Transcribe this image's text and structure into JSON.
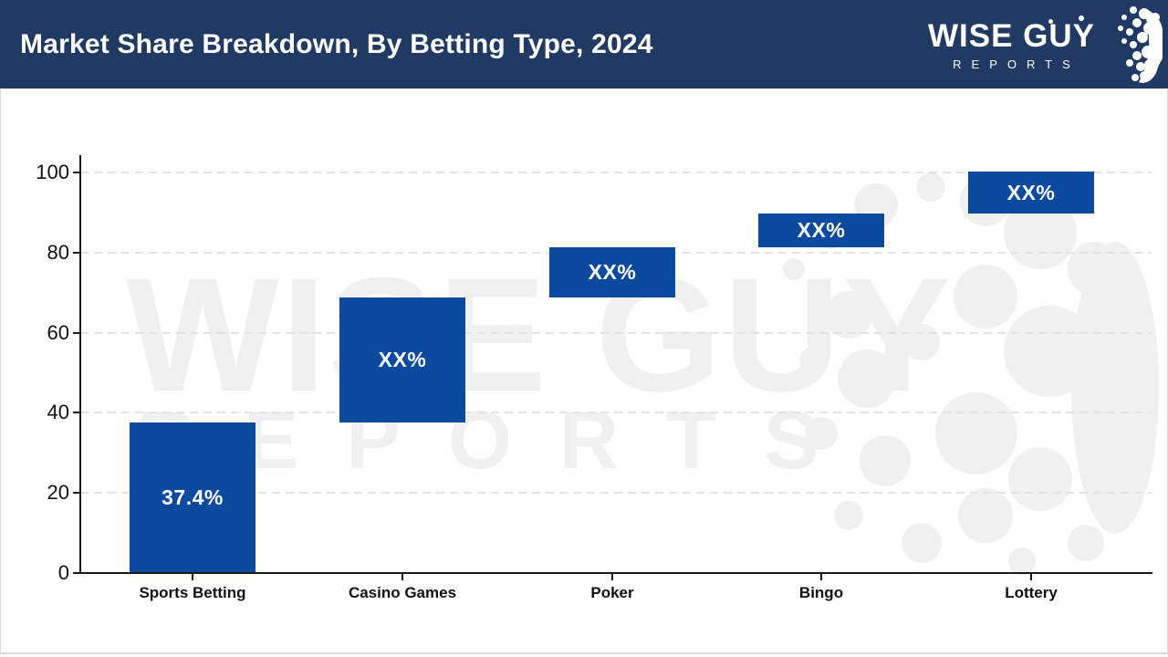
{
  "header": {
    "title": "Market Share Breakdown, By Betting Type, 2024",
    "logo": {
      "line1": "WISE GUY",
      "line2": "REPORTS"
    }
  },
  "watermark": {
    "line1": "WISE GUY",
    "line2": "REPORTS"
  },
  "colors": {
    "header_bg": "#203a64",
    "bar": "#0b4a9f",
    "grid": "#e3e3e3",
    "axis": "#1a1a1a",
    "watermark": "#f0f0f0"
  },
  "chart_data": {
    "type": "bar",
    "subtype": "waterfall",
    "title": "Market Share Breakdown, By Betting Type, 2024",
    "xlabel": "",
    "ylabel": "",
    "categories": [
      "Sports Betting",
      "Casino Games",
      "Poker",
      "Bingo",
      "Lottery"
    ],
    "segments": [
      {
        "category": "Sports Betting",
        "start": 0,
        "end": 37.4,
        "label": "37.4%"
      },
      {
        "category": "Casino Games",
        "start": 37.4,
        "end": 68.5,
        "label": "XX%"
      },
      {
        "category": "Poker",
        "start": 68.5,
        "end": 81,
        "label": "XX%"
      },
      {
        "category": "Bingo",
        "start": 81,
        "end": 89.5,
        "label": "XX%"
      },
      {
        "category": "Lottery",
        "start": 89.5,
        "end": 100,
        "label": "XX%"
      }
    ],
    "yticks": [
      0,
      20,
      40,
      60,
      80,
      100
    ],
    "ylim": [
      0,
      104
    ],
    "grid": "horizontal dashed",
    "legend": "none",
    "bar_color": "#0b4a9f"
  }
}
